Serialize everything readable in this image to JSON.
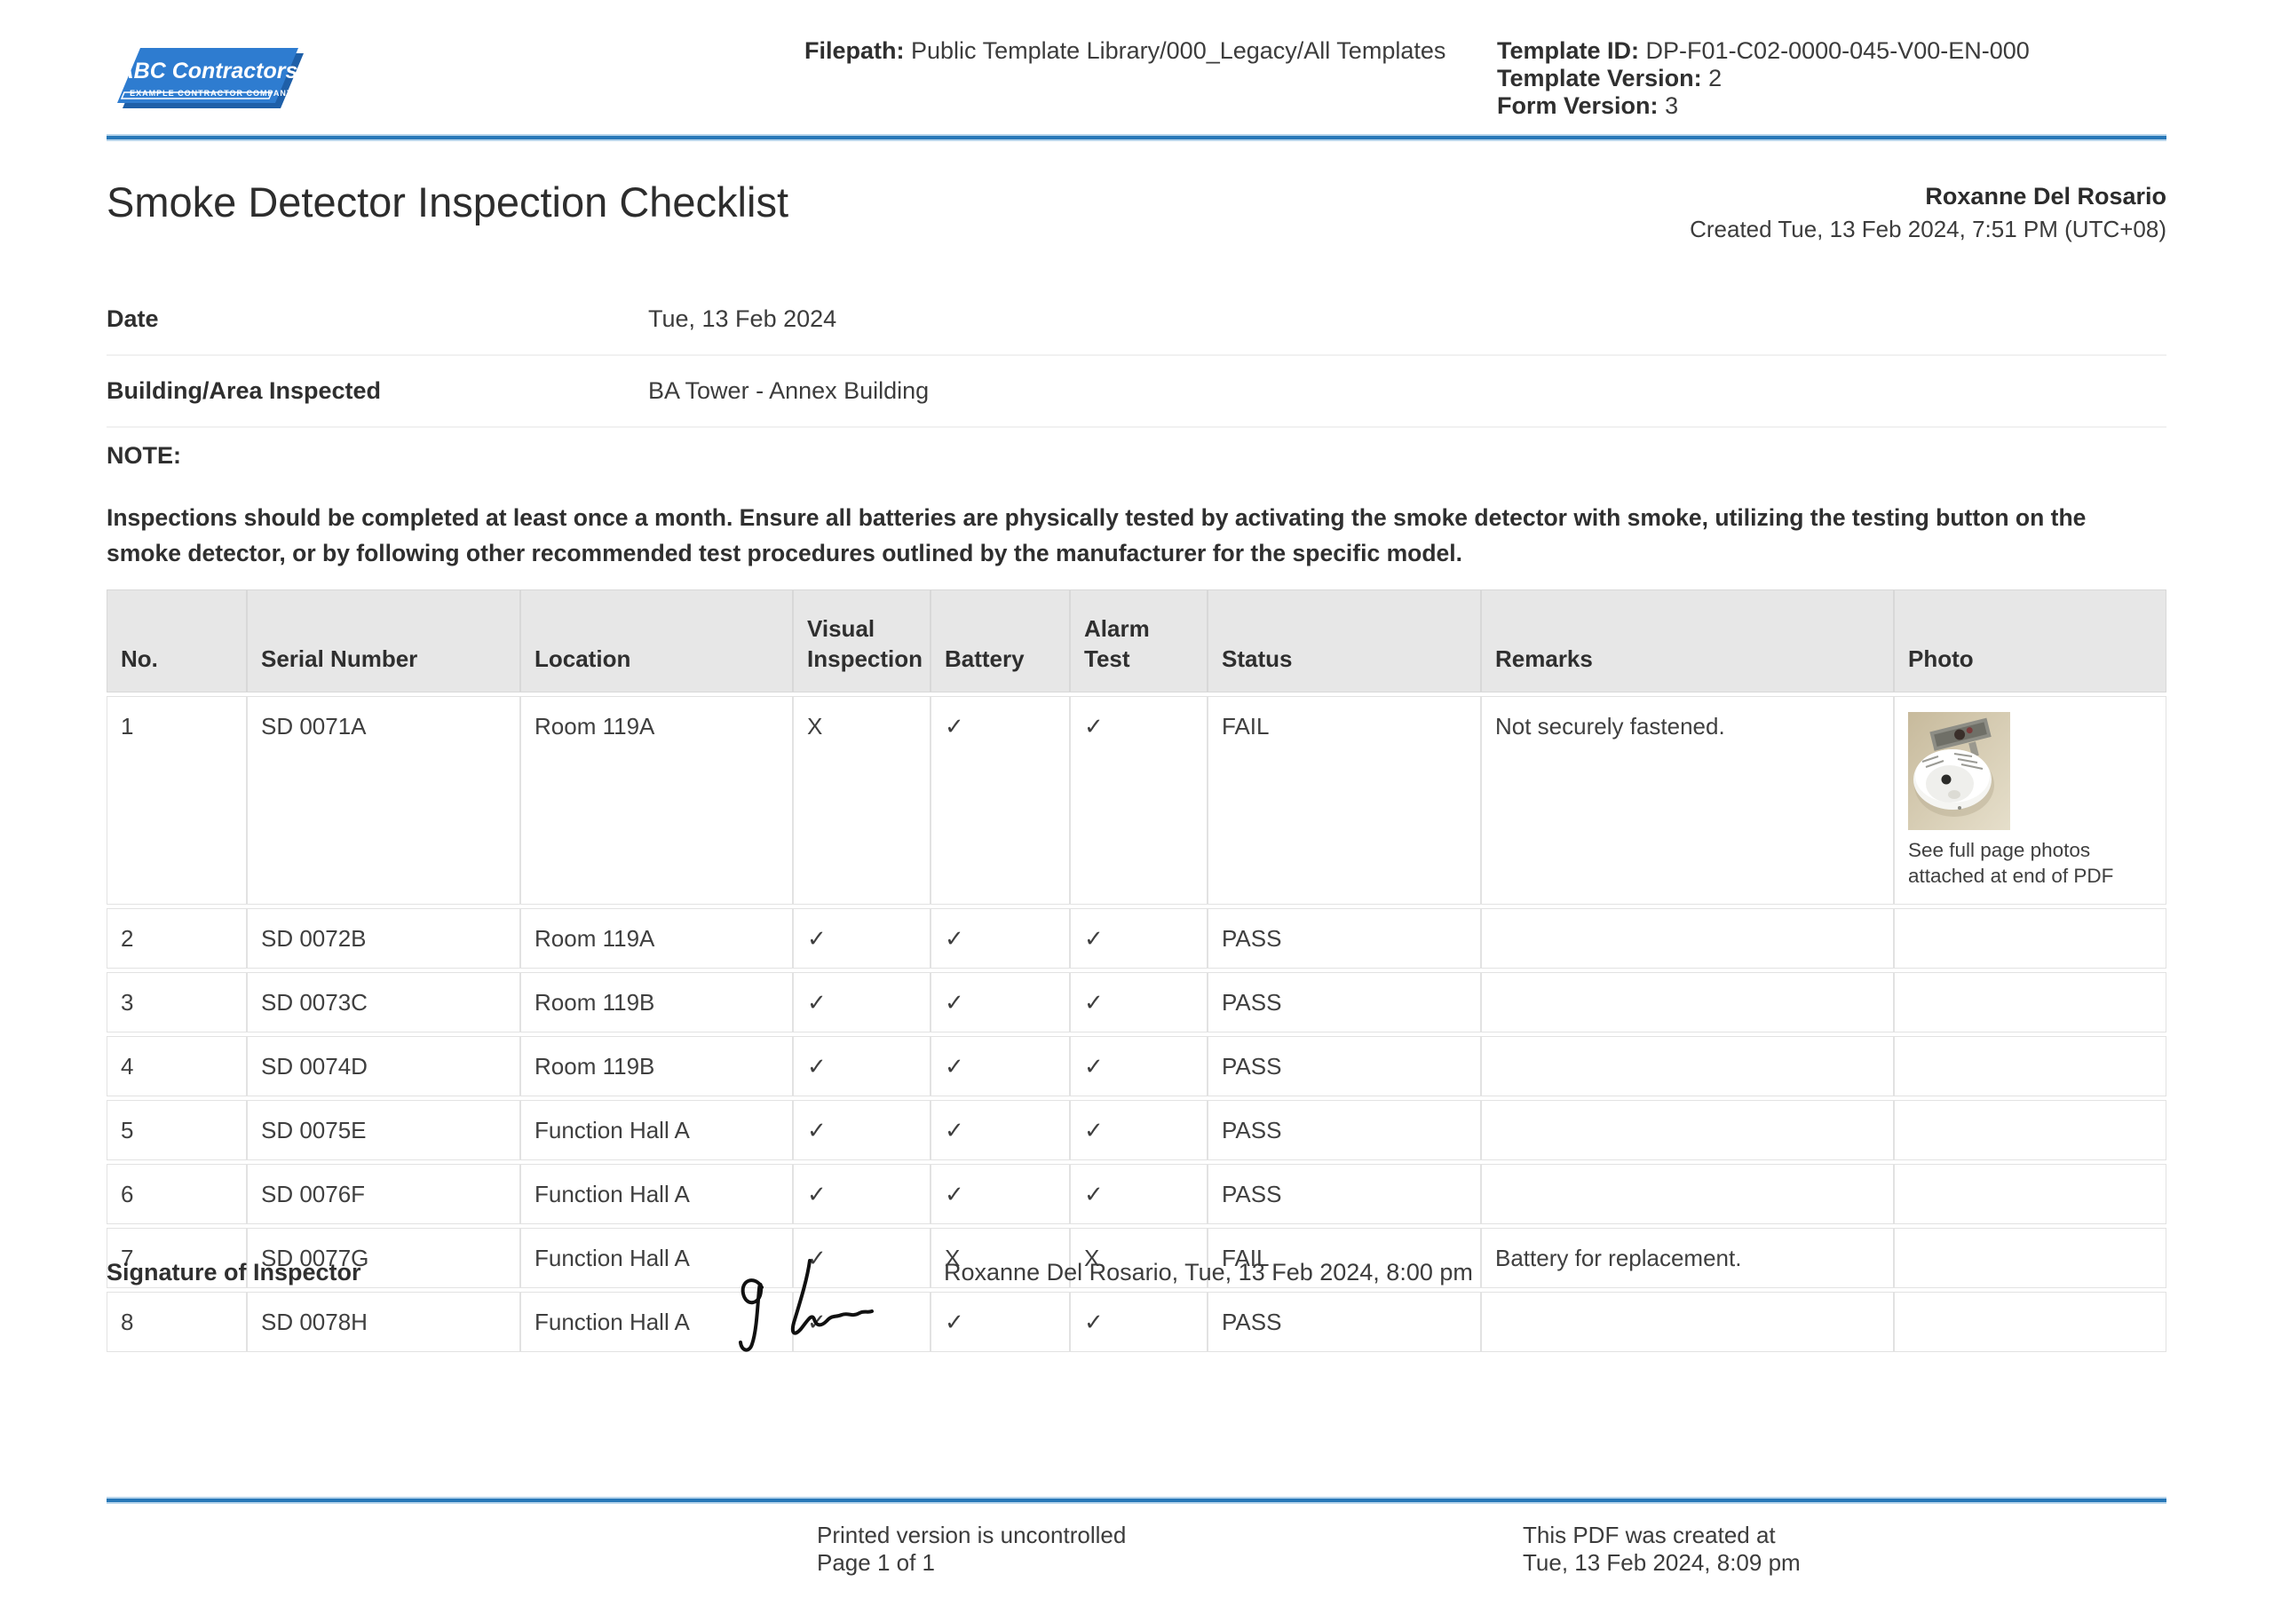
{
  "logo": {
    "title": "ABC Contractors",
    "subtitle": "EXAMPLE CONTRACTOR COMPANY"
  },
  "header": {
    "filepath_label": "Filepath:",
    "filepath_value": "Public Template Library/000_Legacy/All Templates",
    "template_id_label": "Template ID:",
    "template_id_value": "DP-F01-C02-0000-045-V00-EN-000",
    "template_version_label": "Template Version:",
    "template_version_value": "2",
    "form_version_label": "Form Version:",
    "form_version_value": "3"
  },
  "title": "Smoke Detector Inspection Checklist",
  "author": "Roxanne Del Rosario",
  "created": "Created Tue, 13 Feb 2024, 7:51 PM (UTC+08)",
  "fields": [
    {
      "label": "Date",
      "value": "Tue, 13 Feb 2024"
    },
    {
      "label": "Building/Area Inspected",
      "value": "BA Tower - Annex Building"
    }
  ],
  "note_label": "NOTE:",
  "note_text": "Inspections should be completed at least once a month. Ensure all batteries are physically tested by activating the smoke detector with smoke, utilizing the testing button on the smoke detector, or by following other recommended test procedures outlined by the manufacturer for the specific model.",
  "table": {
    "columns": [
      "No.",
      "Serial Number",
      "Location",
      "Visual Inspection",
      "Battery",
      "Alarm Test",
      "Status",
      "Remarks",
      "Photo"
    ],
    "rows": [
      {
        "no": "1",
        "serial": "SD 0071A",
        "location": "Room 119A",
        "visual": "X",
        "battery": "✓",
        "alarm": "✓",
        "status": "FAIL",
        "remarks": "Not securely fastened.",
        "photo": true,
        "photo_caption": "See full page photos attached at end of PDF"
      },
      {
        "no": "2",
        "serial": "SD 0072B",
        "location": "Room 119A",
        "visual": "✓",
        "battery": "✓",
        "alarm": "✓",
        "status": "PASS",
        "remarks": "",
        "photo": false,
        "photo_caption": ""
      },
      {
        "no": "3",
        "serial": "SD 0073C",
        "location": "Room 119B",
        "visual": "✓",
        "battery": "✓",
        "alarm": "✓",
        "status": "PASS",
        "remarks": "",
        "photo": false,
        "photo_caption": ""
      },
      {
        "no": "4",
        "serial": "SD 0074D",
        "location": "Room 119B",
        "visual": "✓",
        "battery": "✓",
        "alarm": "✓",
        "status": "PASS",
        "remarks": "",
        "photo": false,
        "photo_caption": ""
      },
      {
        "no": "5",
        "serial": "SD 0075E",
        "location": "Function Hall A",
        "visual": "✓",
        "battery": "✓",
        "alarm": "✓",
        "status": "PASS",
        "remarks": "",
        "photo": false,
        "photo_caption": ""
      },
      {
        "no": "6",
        "serial": "SD 0076F",
        "location": "Function Hall A",
        "visual": "✓",
        "battery": "✓",
        "alarm": "✓",
        "status": "PASS",
        "remarks": "",
        "photo": false,
        "photo_caption": ""
      },
      {
        "no": "7",
        "serial": "SD 0077G",
        "location": "Function Hall A",
        "visual": "✓",
        "battery": "X",
        "alarm": "X",
        "status": "FAIL",
        "remarks": "Battery for replacement.",
        "photo": false,
        "photo_caption": ""
      },
      {
        "no": "8",
        "serial": "SD 0078H",
        "location": "Function Hall A",
        "visual": "✓",
        "battery": "✓",
        "alarm": "✓",
        "status": "PASS",
        "remarks": "",
        "photo": false,
        "photo_caption": ""
      }
    ]
  },
  "signature": {
    "label": "Signature of Inspector",
    "value": "Roxanne Del Rosario, Tue, 13 Feb 2024, 8:00 pm"
  },
  "footer": {
    "left_line1": "Printed version is uncontrolled",
    "left_line2": "Page 1 of 1",
    "right_line1": "This PDF was created at",
    "right_line2": "Tue, 13 Feb 2024, 8:09 pm"
  },
  "colors": {
    "accent_blue": "#2878b8",
    "logo_blue": "#2e7cd0",
    "logo_shadow_blue": "#1e5fa8",
    "pass_green": "#d5e8d2",
    "fail_pink": "#faeceb",
    "table_header_gray": "#e7e7e7"
  }
}
